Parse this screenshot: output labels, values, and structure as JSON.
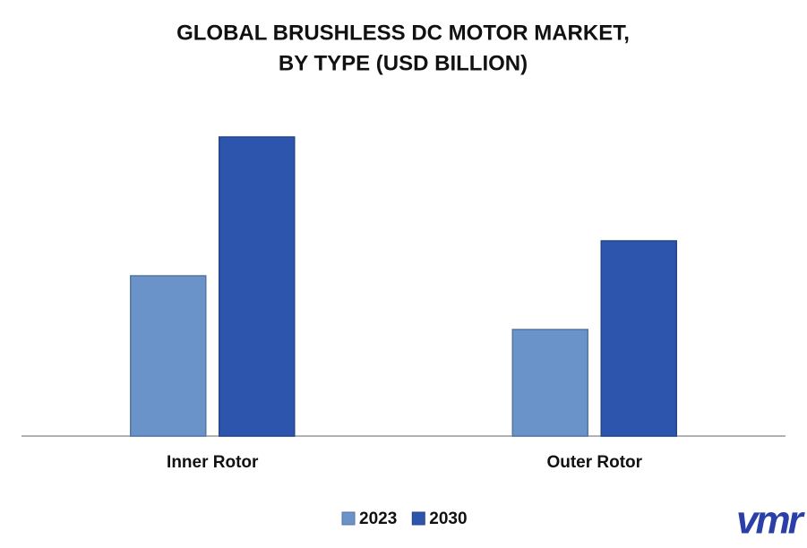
{
  "chart_data": {
    "type": "bar",
    "title": [
      "GLOBAL BRUSHLESS DC MOTOR MARKET,",
      "BY TYPE (USD BILLION)"
    ],
    "categories": [
      "Inner Rotor",
      "Outer Rotor"
    ],
    "series": [
      {
        "name": "2023",
        "color": "#6a93c9",
        "values": [
          17.9,
          11.9
        ]
      },
      {
        "name": "2030",
        "color": "#2e55ad",
        "values": [
          33.4,
          21.8
        ]
      }
    ],
    "ylim": [
      0,
      37
    ],
    "legend": "bottom"
  },
  "logo": "vmr"
}
